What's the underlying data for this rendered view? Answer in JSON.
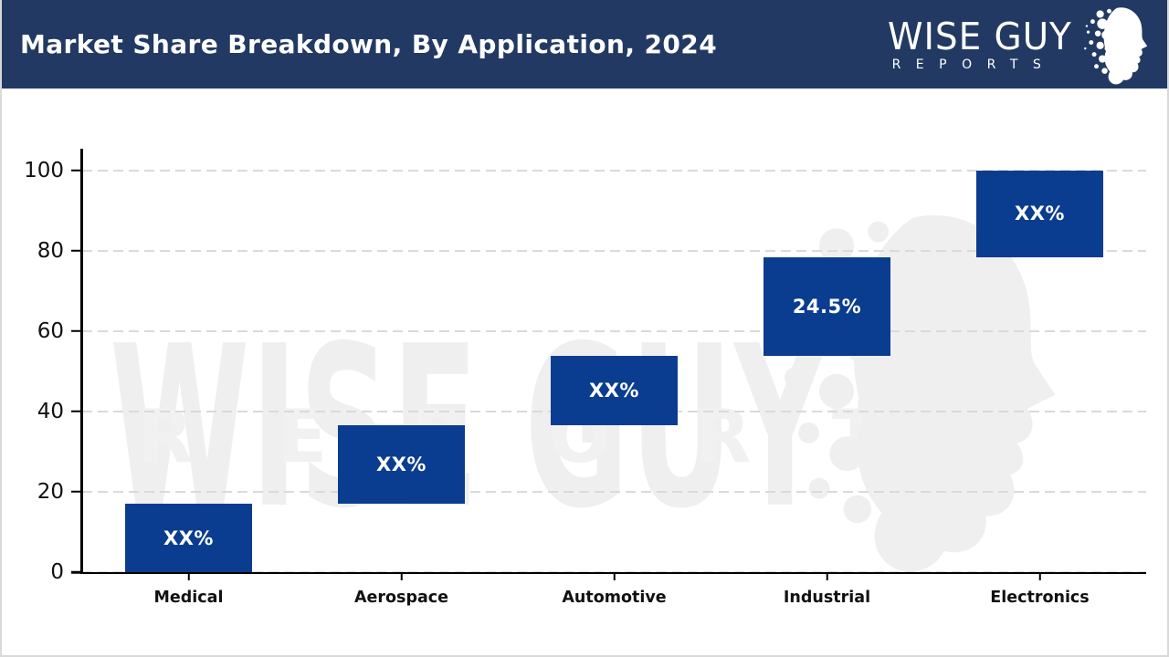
{
  "header": {
    "title": "Market Share Breakdown, By Application, 2024",
    "logo": {
      "wordmark": "WISE GUY",
      "subtext": "REPORTS"
    }
  },
  "watermark": {
    "wordmark": "WISE GUY",
    "subtext": "REPORTS"
  },
  "chart_data": {
    "type": "bar",
    "variant": "waterfall",
    "title": "Market Share Breakdown, By Application, 2024",
    "categories": [
      "Medical",
      "Aerospace",
      "Automotive",
      "Industrial",
      "Electronics"
    ],
    "segments": [
      {
        "category": "Medical",
        "start": 0,
        "end": 17,
        "label": "XX%"
      },
      {
        "category": "Aerospace",
        "start": 17,
        "end": 36.5,
        "label": "XX%"
      },
      {
        "category": "Automotive",
        "start": 36.5,
        "end": 53.8,
        "label": "XX%"
      },
      {
        "category": "Industrial",
        "start": 53.8,
        "end": 78.3,
        "label": "24.5%",
        "value": 24.5
      },
      {
        "category": "Electronics",
        "start": 78.3,
        "end": 100,
        "label": "XX%"
      }
    ],
    "xlabel": "",
    "ylabel": "",
    "ylim": [
      0,
      100
    ],
    "yticks": [
      0,
      20,
      40,
      60,
      80,
      100
    ],
    "grid": "horizontal-dashed",
    "legend": "none",
    "colors": {
      "bar": "#0a3d8f",
      "bar_label": "#ffffff",
      "header_bg": "#223a63",
      "header_text": "#ffffff",
      "axis": "#000000",
      "tick_label": "#111111",
      "gridline": "#dadada",
      "watermark": "#efefef"
    }
  }
}
